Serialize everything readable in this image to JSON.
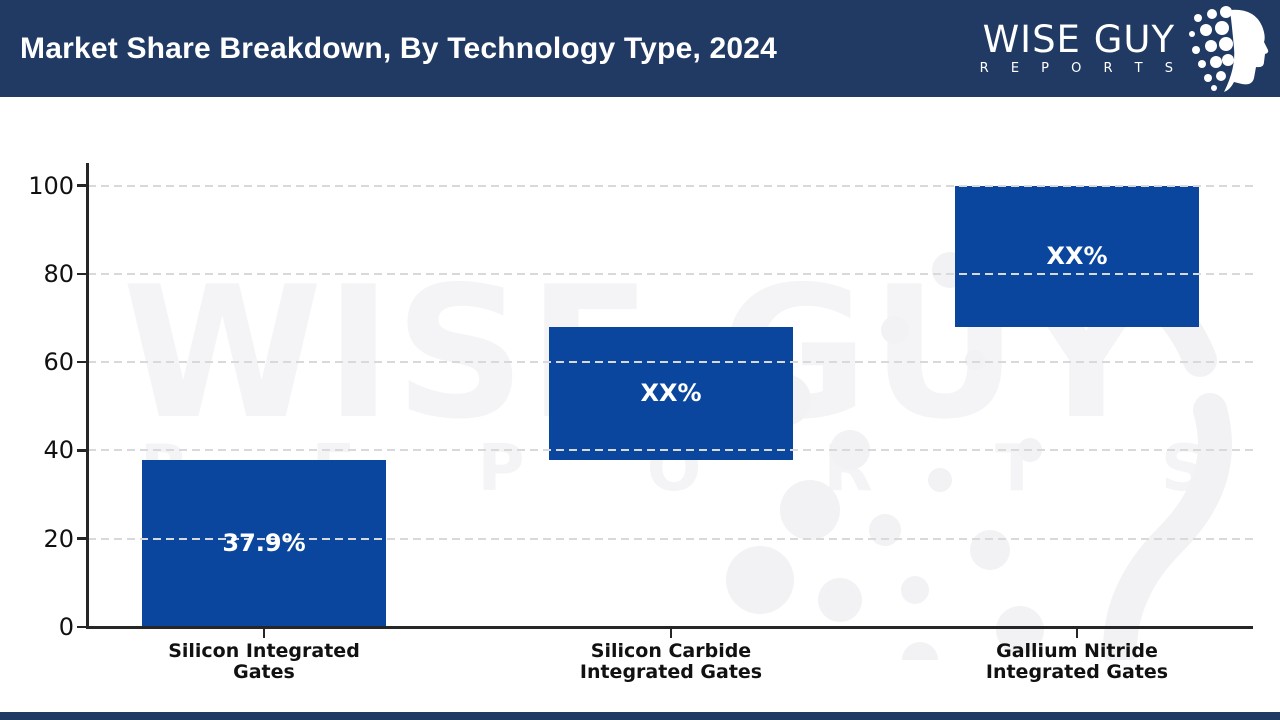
{
  "header": {
    "title": "Market Share Breakdown, By Technology Type, 2024",
    "logo": {
      "line1": "WISE GUY",
      "line2": "R E P O R T S"
    }
  },
  "colors": {
    "header_bg": "#213a64",
    "footer_bg": "#213a64",
    "bar": "#0a459e",
    "grid": "#d9d9d9",
    "axis": "#262626",
    "bar_label": "#ffffff",
    "watermark": "#f4f4f6"
  },
  "watermark": {
    "line1": "WISE GUY",
    "line2": "R E P O R T S"
  },
  "chart_data": {
    "type": "bar",
    "subtype": "waterfall",
    "title": "Market Share Breakdown, By Technology Type, 2024",
    "categories": [
      "Silicon Integrated\nGates",
      "Silicon Carbide\nIntegrated Gates",
      "Gallium Nitride\nIntegrated Gates"
    ],
    "bars": [
      {
        "category": "Silicon Integrated Gates",
        "start": 0,
        "end": 37.9,
        "label": "37.9%"
      },
      {
        "category": "Silicon Carbide Integrated Gates",
        "start": 37.9,
        "end": 68,
        "label": "XX%"
      },
      {
        "category": "Gallium Nitride Integrated Gates",
        "start": 68,
        "end": 100,
        "label": "XX%"
      }
    ],
    "yticks": [
      0,
      20,
      40,
      60,
      80,
      100
    ],
    "ylim": [
      0,
      105
    ],
    "xlabel": "",
    "ylabel": "",
    "grid": "horizontal-dashed",
    "grid_above_bars": true,
    "legend": "none"
  }
}
